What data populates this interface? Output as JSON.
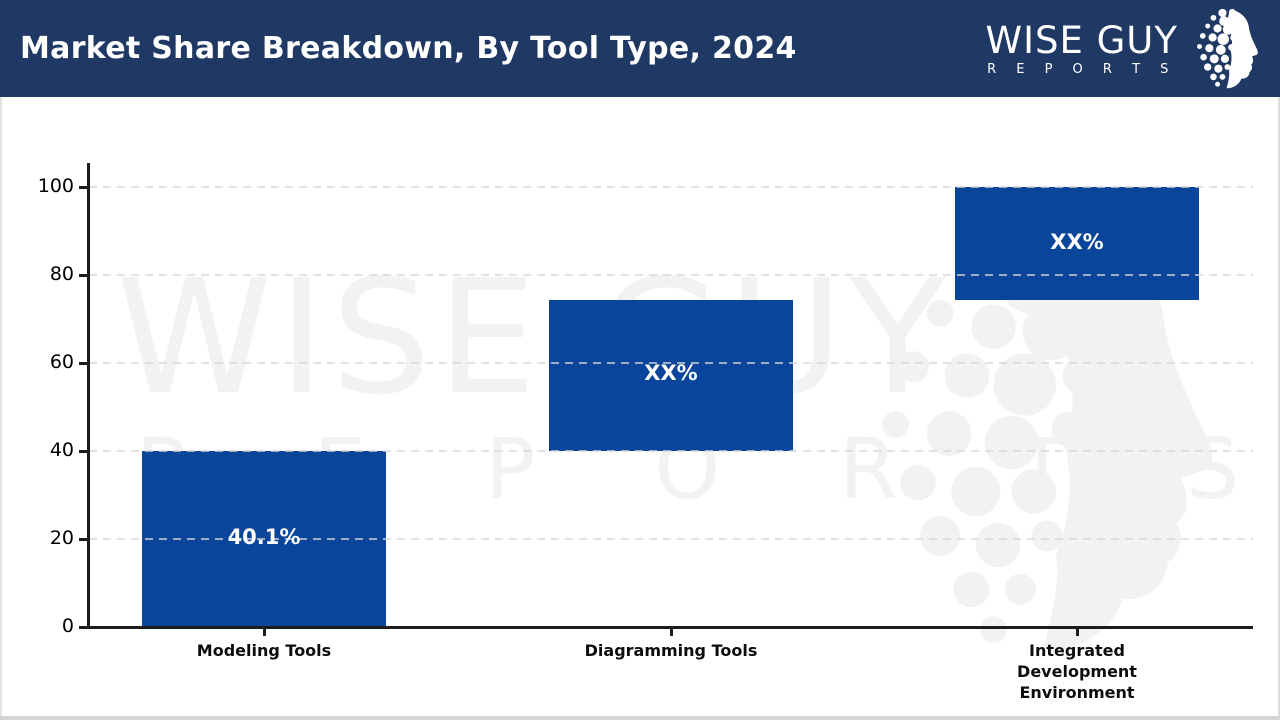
{
  "header": {
    "title": "Market Share Breakdown, By Tool Type, 2024",
    "logo": {
      "brand": "WISE GUY",
      "sub": "R E P O R T S"
    }
  },
  "watermark": {
    "brand": "WISE GUY",
    "sub": "R E P O R T S"
  },
  "chart_data": {
    "type": "bar",
    "subtype": "stacked-waterfall-percent",
    "title": "Market Share Breakdown, By Tool Type, 2024",
    "categories": [
      "Modeling Tools",
      "Diagramming Tools",
      "Integrated Development Environment"
    ],
    "categories_display": [
      "Modeling Tools",
      "Diagramming Tools",
      "Integrated\nDevelopment\nEnvironment"
    ],
    "segments": [
      {
        "category": "Modeling Tools",
        "start": 0,
        "end": 40.1,
        "label": "40.1%"
      },
      {
        "category": "Diagramming Tools",
        "start": 40.1,
        "end": 74.3,
        "label": "XX%"
      },
      {
        "category": "Integrated Development Environment",
        "start": 74.3,
        "end": 100,
        "label": "XX%"
      }
    ],
    "xlabel": "",
    "ylabel": "",
    "ylim": [
      0,
      100
    ],
    "yticks": [
      0,
      20,
      40,
      60,
      80,
      100
    ],
    "grid": "dashed-horizontal",
    "legend": "none",
    "bar_color": "#09469b",
    "bar_label_color": "#ffffff",
    "axis_color": "#1c1c1c",
    "header_bg_color": "#1f3864",
    "watermark_color": "#f2f2f3"
  }
}
